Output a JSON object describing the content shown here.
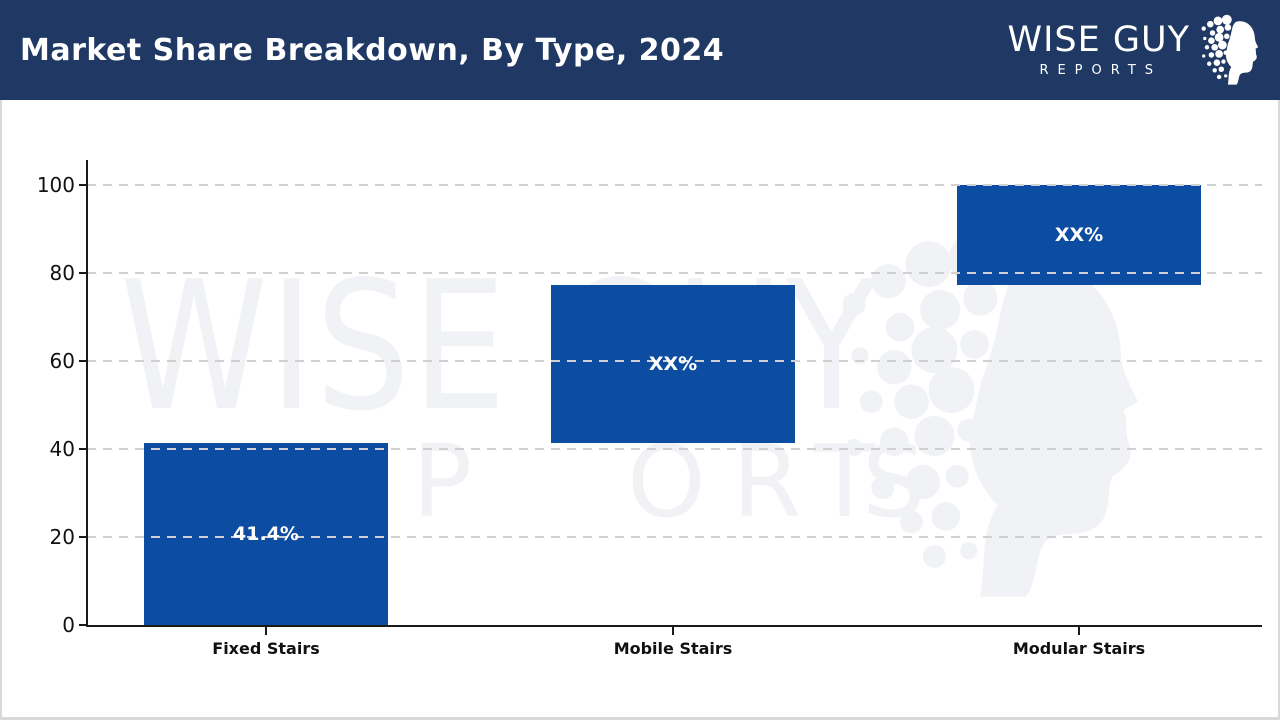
{
  "header": {
    "title": "Market Share Breakdown, By Type, 2024",
    "logo": {
      "name": "WISE GUY",
      "sub": "REPORTS"
    }
  },
  "watermark": {
    "brand": "WISE GUY",
    "sub_letters": [
      "R",
      "E",
      "P",
      "O",
      "R",
      "T",
      "S"
    ]
  },
  "chart_data": {
    "type": "bar",
    "subtype": "waterfall",
    "title": "Market Share Breakdown, By Type, 2024",
    "categories": [
      "Fixed Stairs",
      "Mobile Stairs",
      "Modular Stairs"
    ],
    "series": [
      {
        "category": "Fixed Stairs",
        "start": 0,
        "end": 41.4,
        "label": "41.4%"
      },
      {
        "category": "Mobile Stairs",
        "start": 41.4,
        "end": 77.2,
        "label": "XX%"
      },
      {
        "category": "Modular Stairs",
        "start": 77.2,
        "end": 100,
        "label": "XX%"
      }
    ],
    "xlabel": "",
    "ylabel": "",
    "yticks": [
      0,
      20,
      40,
      60,
      80,
      100
    ],
    "ylim": [
      0,
      100
    ],
    "grid": "horizontal-dashed",
    "legend": "none",
    "colors": {
      "bar": "#0c4da2",
      "bar_label": "#ffffff",
      "grid": "#d0d0d0",
      "axis": "#1a1a1a",
      "tick_label": "#111111",
      "header_bg": "#1f3864",
      "header_text": "#ffffff",
      "watermark": "#f1f2f5"
    }
  }
}
